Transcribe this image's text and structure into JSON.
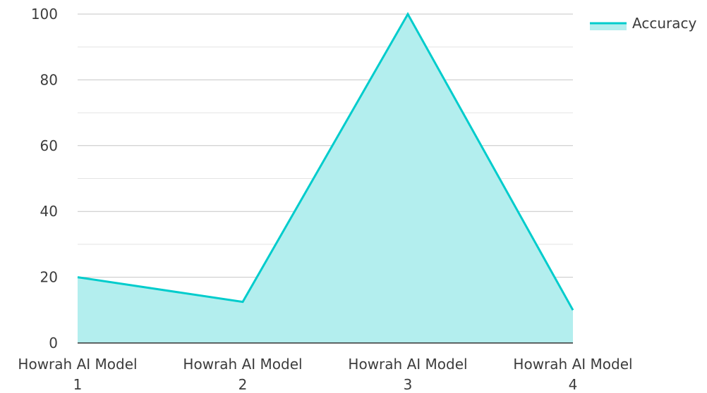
{
  "chart_data": {
    "type": "area",
    "categories": [
      [
        "Howrah AI Model",
        "1"
      ],
      [
        "Howrah AI Model",
        "2"
      ],
      [
        "Howrah AI Model",
        "3"
      ],
      [
        "Howrah AI Model",
        "4"
      ]
    ],
    "series": [
      {
        "name": "Accuracy",
        "values": [
          20,
          12.5,
          100,
          10
        ],
        "color": "#00cccc",
        "fill": "#b3eeee"
      }
    ],
    "ylim": [
      0,
      100
    ],
    "yticks": [
      0,
      20,
      40,
      60,
      80,
      100
    ],
    "minor_gridlines": [
      10,
      30,
      50,
      70,
      90
    ],
    "grid": true,
    "legend_position": "top-right",
    "title": "",
    "xlabel": "",
    "ylabel": ""
  }
}
